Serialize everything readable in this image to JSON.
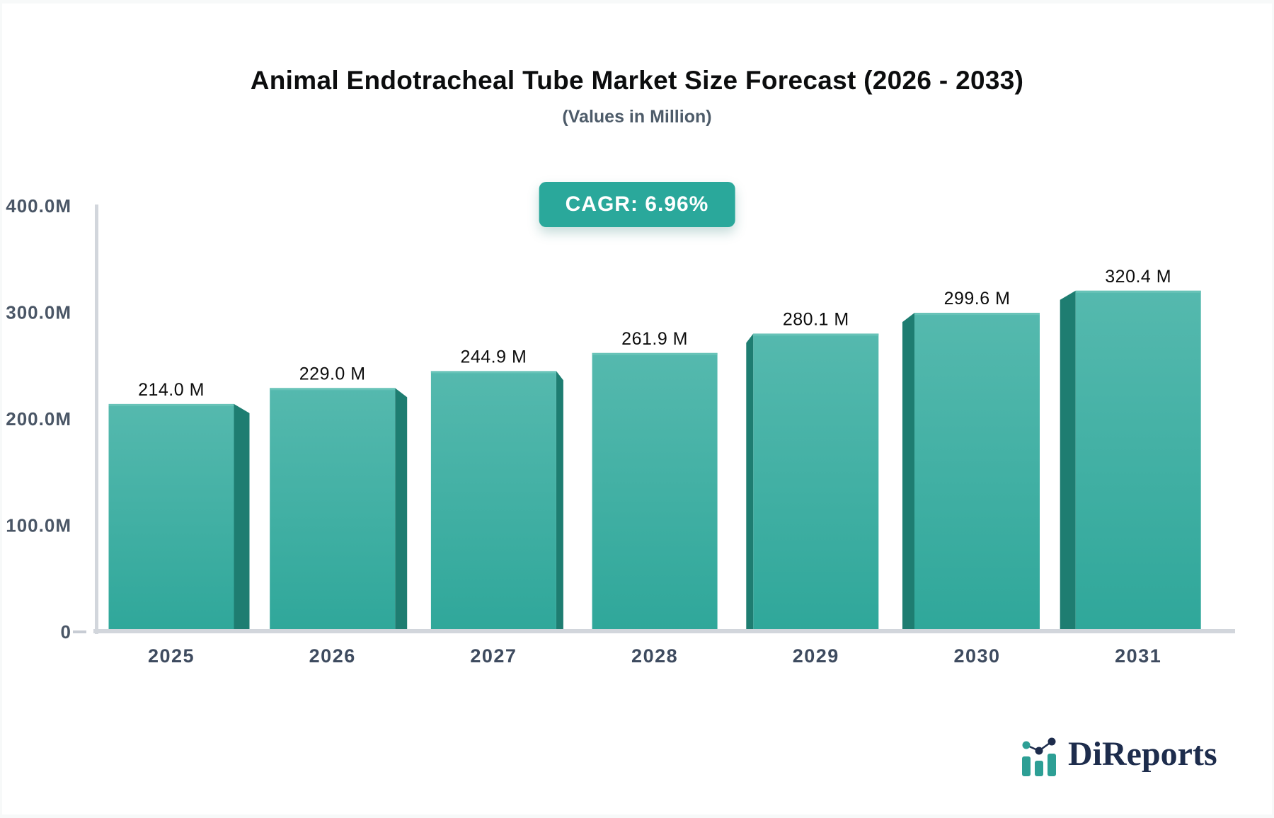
{
  "title": "Animal Endotracheal Tube Market Size Forecast (2026 - 2033)",
  "subtitle": "(Values in Million)",
  "badge": {
    "label": "CAGR: 6.96%",
    "bg_color": "#2aa89b",
    "text_color": "#ffffff"
  },
  "chart_data": {
    "type": "bar",
    "categories": [
      "2025",
      "2026",
      "2027",
      "2028",
      "2029",
      "2030",
      "2031"
    ],
    "values": [
      214.0,
      229.0,
      244.9,
      261.9,
      280.1,
      299.6,
      320.4
    ],
    "value_labels": [
      "214.0 M",
      "229.0 M",
      "244.9 M",
      "261.9 M",
      "280.1 M",
      "299.6 M",
      "320.4 M"
    ],
    "ylim": [
      0,
      400
    ],
    "y_ticks": [
      {
        "value": 400,
        "label": "400.0M"
      },
      {
        "value": 300,
        "label": "300.0M"
      },
      {
        "value": 200,
        "label": "200.0M"
      },
      {
        "value": 100,
        "label": "100.0M"
      },
      {
        "value": 0,
        "label": "0"
      }
    ],
    "grid": false,
    "legend": false,
    "bar_color_top": "#55b9ae",
    "bar_color_bottom": "#2fa79a",
    "bar_top_edge_color": "#68c3b8",
    "bar_side_color": "#1e7d71",
    "axis_color": "#d2d6dc",
    "tick_color": "#c7ccd4"
  },
  "logo": {
    "text": "DiReports",
    "icon": "mini-bar-chart-icon",
    "icon_color": "#2d9f95",
    "text_color": "#1d2c4c"
  }
}
